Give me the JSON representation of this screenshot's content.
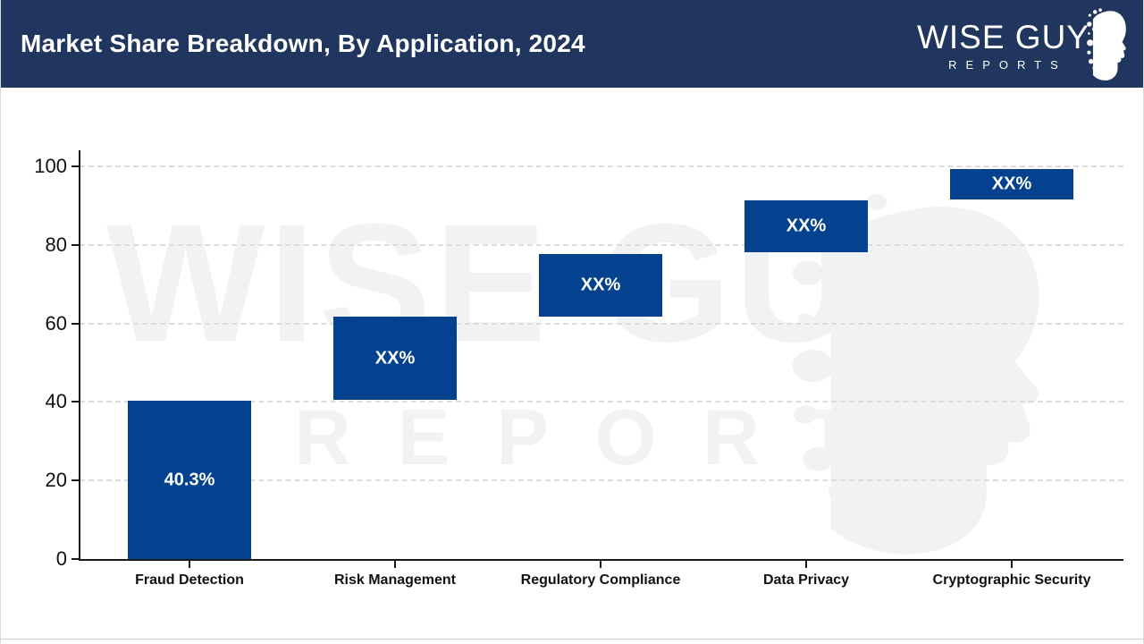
{
  "header": {
    "title": "Market Share Breakdown, By Application, 2024",
    "logo": {
      "line1": "WISE GUY",
      "line2": "REPORTS"
    }
  },
  "watermark": {
    "line1": "WISE GUY",
    "line2": "REPORTS"
  },
  "chart_data": {
    "type": "bar",
    "subtype": "waterfall",
    "title": "Market Share Breakdown, By Application, 2024",
    "categories": [
      "Fraud Detection",
      "Risk Management",
      "Regulatory Compliance",
      "Data Privacy",
      "Cryptographic Security"
    ],
    "segments": [
      {
        "category": "Fraud Detection",
        "start": 0,
        "end": 40.3,
        "label": "40.3%"
      },
      {
        "category": "Risk Management",
        "start": 40.5,
        "end": 61.8,
        "label": "XX%"
      },
      {
        "category": "Regulatory Compliance",
        "start": 61.8,
        "end": 77.7,
        "label": "XX%"
      },
      {
        "category": "Data Privacy",
        "start": 78.1,
        "end": 91.3,
        "label": "XX%"
      },
      {
        "category": "Cryptographic Security",
        "start": 91.6,
        "end": 99.3,
        "label": "XX%"
      }
    ],
    "xlabel": "",
    "ylabel": "",
    "ylim": [
      0,
      100
    ],
    "yticks": [
      0,
      20,
      40,
      60,
      80,
      100
    ],
    "grid": "horizontal-dashed",
    "legend": "none"
  },
  "colors": {
    "header_bg": "#21365e",
    "bar": "#04418f",
    "bar_label": "#ffffff",
    "axis": "#1a1a1a",
    "gridline": "#dcdcdc",
    "watermark": "#f1f2f4",
    "logo": "#ffffff"
  }
}
